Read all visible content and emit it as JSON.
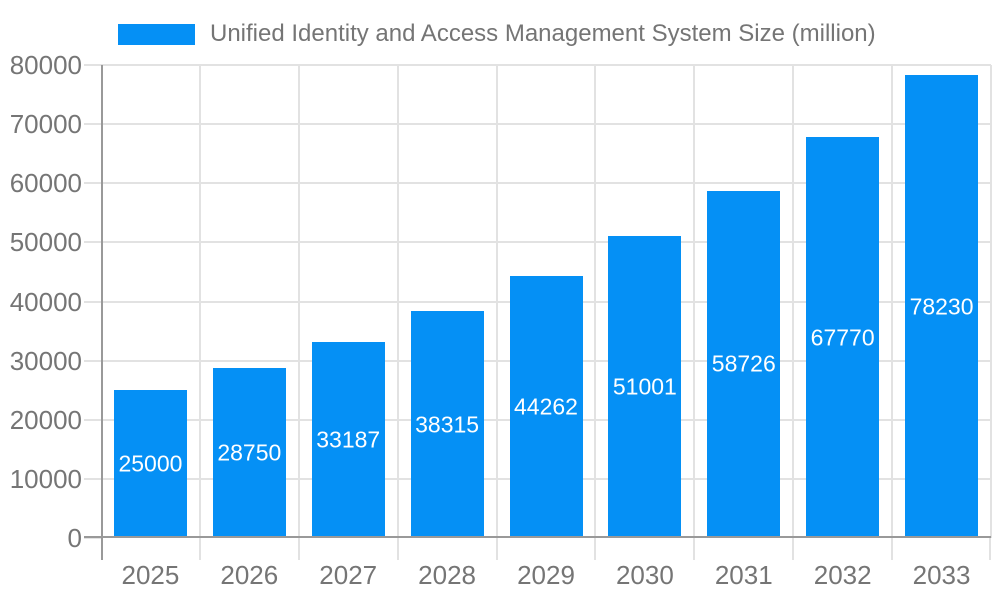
{
  "chart_data": {
    "type": "bar",
    "title": "Unified Identity and Access Management System Size (million)",
    "categories": [
      "2025",
      "2026",
      "2027",
      "2028",
      "2029",
      "2030",
      "2031",
      "2032",
      "2033"
    ],
    "values": [
      25000,
      28750,
      33187,
      38315,
      44262,
      51001,
      58726,
      67770,
      78230
    ],
    "value_labels": [
      "25000",
      "28750",
      "33187",
      "38315",
      "44262",
      "51001",
      "58726",
      "67770",
      "78230"
    ],
    "xlabel": "",
    "ylabel": "",
    "ylim": [
      0,
      80000
    ],
    "y_ticks": [
      "0",
      "10000",
      "20000",
      "30000",
      "40000",
      "50000",
      "60000",
      "70000",
      "80000"
    ],
    "y_tick_values": [
      0,
      10000,
      20000,
      30000,
      40000,
      50000,
      60000,
      70000,
      80000
    ],
    "grid": true,
    "legend_position": "top",
    "colors": {
      "bar": "#0590f5",
      "value_label": "#ffffff",
      "tick_label": "#757575",
      "legend_label": "#757575",
      "axis_line": "#999999",
      "grid_line": "#e2e2e2",
      "background": "#ffffff"
    }
  }
}
